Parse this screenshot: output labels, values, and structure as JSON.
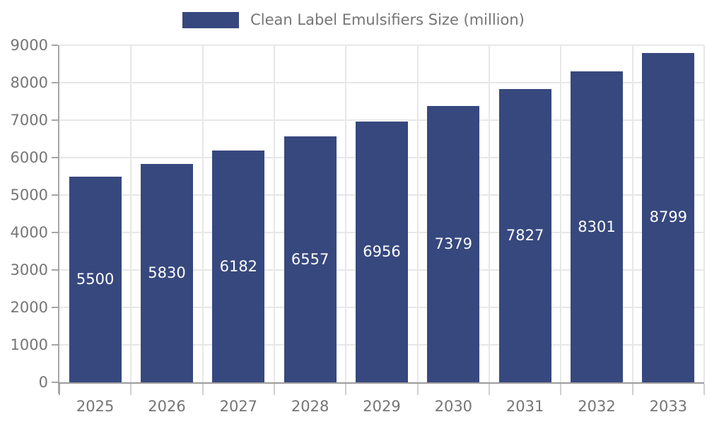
{
  "legend": {
    "label": "Clean Label Emulsifiers Size (million)"
  },
  "chart_data": {
    "type": "bar",
    "title": "",
    "series_name": "Clean Label Emulsifiers Size (million)",
    "categories": [
      "2025",
      "2026",
      "2027",
      "2028",
      "2029",
      "2030",
      "2031",
      "2032",
      "2033"
    ],
    "values": [
      5500,
      5830,
      6182,
      6557,
      6956,
      7379,
      7827,
      8301,
      8799
    ],
    "xlabel": "",
    "ylabel": "",
    "ylim": [
      0,
      9000
    ],
    "yticks": [
      0,
      1000,
      2000,
      3000,
      4000,
      5000,
      6000,
      7000,
      8000,
      9000
    ],
    "grid": true,
    "legend_position": "top-center",
    "bar_label_position": "inside-center",
    "colors": {
      "bar": "#37487E",
      "bar_label": "#FFFFFF",
      "axis_text": "#757575",
      "y_axis_line": "#A6A6A6",
      "x_axis_line": "#9B9B9B",
      "y_tick": "#A6A6A6",
      "x_tick": "#CFCFCF",
      "gridline": "#E7E7E7",
      "background": "#FFFFFF"
    }
  }
}
